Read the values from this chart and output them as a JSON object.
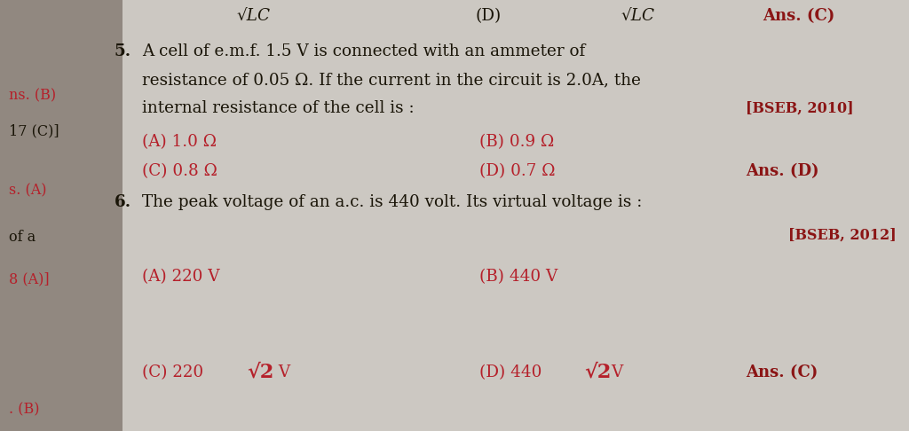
{
  "bg_color": "#ccc8c2",
  "bg_left": "#a09890",
  "text_color_black": "#1a1508",
  "text_color_red": "#b5202a",
  "text_color_dark_red": "#8b1515",
  "top_sqrt_lc_left": "√LC",
  "top_d": "(D)",
  "top_sqrt_lc_right": "√LC",
  "top_ans_c": "Ans. (C)",
  "q5_number": "5.",
  "q5_line1": "A cell of e.m.f. 1.5 V is connected with an ammeter of",
  "q5_line2": "resistance of 0.05 Ω. If the current in the circuit is 2.0A, the",
  "q5_line3": "internal resistance of the cell is :",
  "q5_ref": "[BSEB, 2010]",
  "q5_A": "(A) 1.0 Ω",
  "q5_B": "(B) 0.9 Ω",
  "q5_C": "(C) 0.8 Ω",
  "q5_D": "(D) 0.7 Ω",
  "q5_ans": "Ans. (D)",
  "left_labels": [
    "ns. (B)",
    "17 (C)]",
    "s. (A)",
    "of a",
    "8 (A)]"
  ],
  "left_label_colors": [
    "#b5202a",
    "#1a1508",
    "#b5202a",
    "#1a1508",
    "#b5202a"
  ],
  "q6_number": "6.",
  "q6_line1": "The peak voltage of an a.c. is 440 volt. Its virtual voltage is :",
  "q6_ref": "[BSEB, 2012]",
  "q6_A": "(A) 220 V",
  "q6_B": "(B) 440 V",
  "q6_C_pre": "(C) 220",
  "q6_C_sqrt": "√2",
  "q6_C_post": " V",
  "q6_D_pre": "(D) 440",
  "q6_D_sqrt": "√2",
  "q6_D_post": "V",
  "q6_ans": "Ans. (C)",
  "bottom_label": ". (B)",
  "fig_width": 10.24,
  "fig_height": 4.86,
  "dpi": 100
}
